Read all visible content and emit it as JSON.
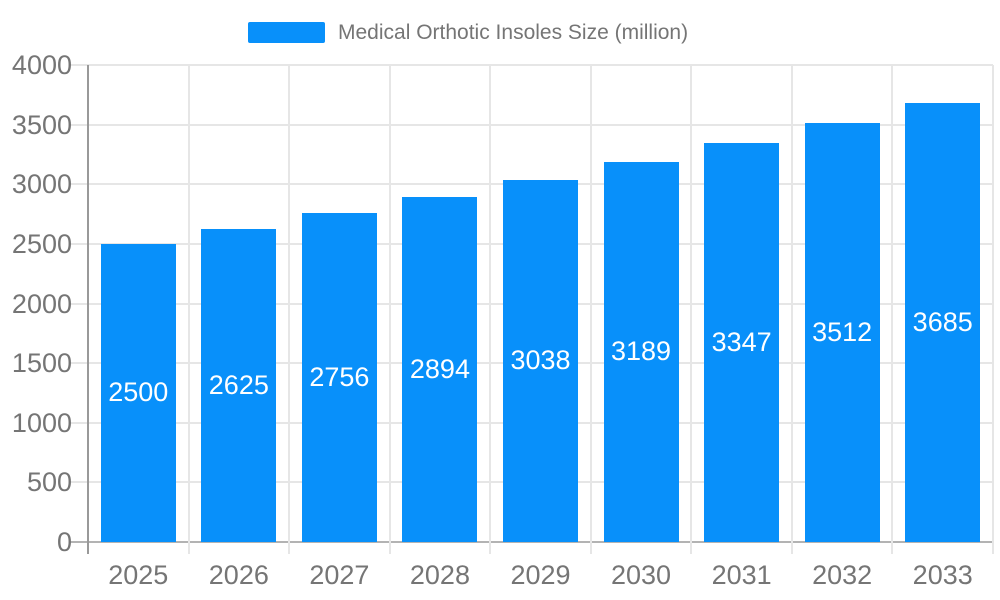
{
  "chart_data": {
    "type": "bar",
    "title": "Medical Orthotic Insoles Size (million)",
    "legend_entries": [
      "Medical Orthotic Insoles Size (million)"
    ],
    "legend_position": "top-center",
    "categories": [
      "2025",
      "2026",
      "2027",
      "2028",
      "2029",
      "2030",
      "2031",
      "2032",
      "2033"
    ],
    "values": [
      2500,
      2625,
      2756,
      2894,
      3038,
      3189,
      3347,
      3512,
      3685
    ],
    "value_label_position": "inside-center",
    "xlabel": "",
    "ylabel": "",
    "ylim": [
      0,
      4000
    ],
    "ytick_step": 500,
    "ytick_labels": [
      "0",
      "500",
      "1000",
      "1500",
      "2000",
      "2500",
      "3000",
      "3500",
      "4000"
    ],
    "grid": true,
    "colors": {
      "bar": "#0890fa",
      "value_text": "#ffffff",
      "axis_text": "#757575",
      "grid_line": "#e6e6e6",
      "axis_line": "#999999",
      "background": "#ffffff"
    }
  }
}
